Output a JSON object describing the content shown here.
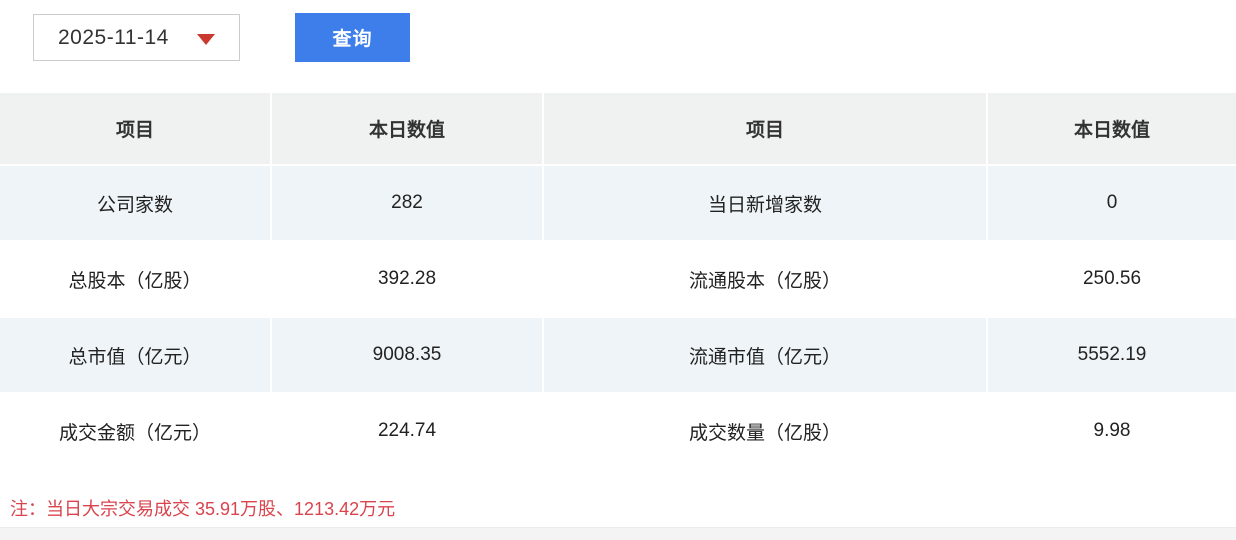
{
  "toolbar": {
    "date_value": "2025-11-14",
    "query_label": "查询"
  },
  "table": {
    "headers": [
      "项目",
      "本日数值",
      "项目",
      "本日数值"
    ],
    "rows": [
      [
        "公司家数",
        "282",
        "当日新增家数",
        "0"
      ],
      [
        "总股本（亿股）",
        "392.28",
        "流通股本（亿股）",
        "250.56"
      ],
      [
        "总市值（亿元）",
        "9008.35",
        "流通市值（亿元）",
        "5552.19"
      ],
      [
        "成交金额（亿元）",
        "224.74",
        "成交数量（亿股）",
        "9.98"
      ]
    ]
  },
  "note": {
    "text": "注：当日大宗交易成交 35.91万股、1213.42万元"
  },
  "colors": {
    "accent_blue": "#3d7eea",
    "note_red": "#d9444d",
    "caret_red": "#c9392f",
    "header_bg": "#f0f1f1",
    "row_alt_bg": "#eef4f8"
  },
  "icons": {
    "dropdown_caret": "chevron-down"
  }
}
